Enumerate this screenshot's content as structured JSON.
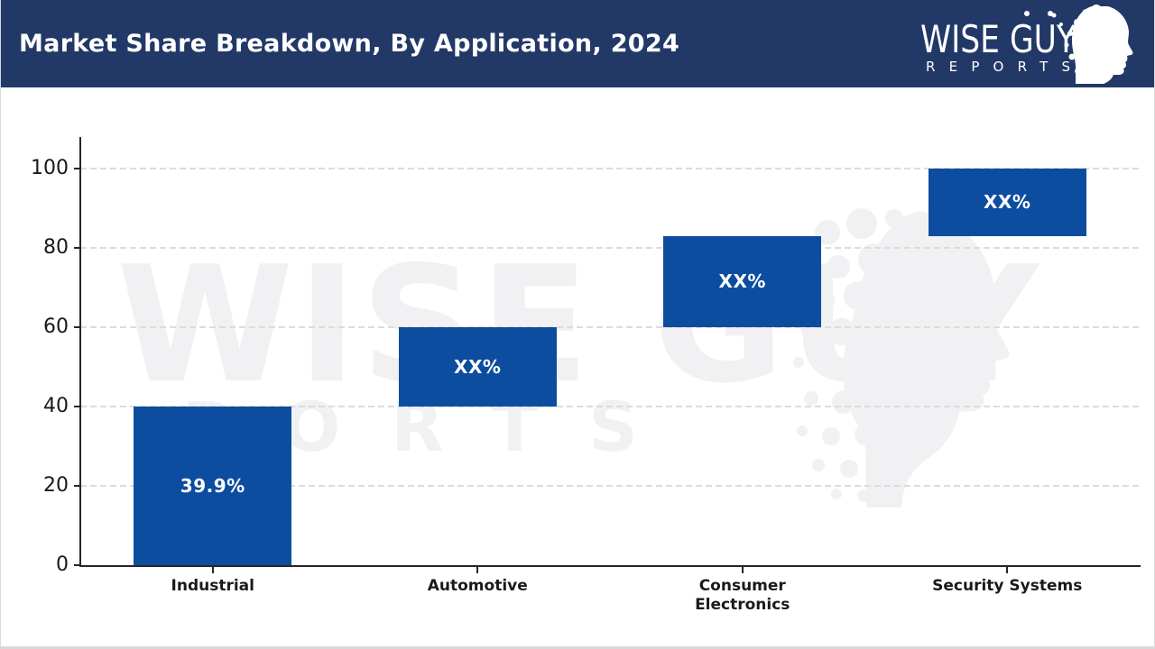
{
  "header": {
    "title": "Market Share Breakdown, By Application, 2024",
    "brand": {
      "line1": "WISE GUY",
      "line2": "REPORTS"
    }
  },
  "watermark": {
    "line1": "WISE GUY",
    "line2": "PORTS"
  },
  "colors": {
    "header_bg": "#223967",
    "bar": "#0d4da0",
    "grid": "#dcdcdc",
    "axis": "#262626",
    "tick_text": "#1a1a1a",
    "bar_label_text": "#ffffff",
    "watermark": "#f1f1f4"
  },
  "chart_data": {
    "type": "bar",
    "subtype": "waterfall",
    "title": "Market Share Breakdown, By Application, 2024",
    "categories": [
      "Industrial",
      "Automotive",
      "Consumer Electronics",
      "Security Systems"
    ],
    "segments": [
      {
        "category": "Industrial",
        "start": 0,
        "end": 39.9,
        "label": "39.9%"
      },
      {
        "category": "Automotive",
        "start": 39.9,
        "end": 60,
        "label": "XX%"
      },
      {
        "category": "Consumer Electronics",
        "start": 60,
        "end": 83,
        "label": "XX%"
      },
      {
        "category": "Security Systems",
        "start": 83,
        "end": 100,
        "label": "XX%"
      }
    ],
    "ylim": [
      0,
      100
    ],
    "yticks": [
      0,
      20,
      40,
      60,
      80,
      100
    ],
    "xlabel": "",
    "ylabel": "",
    "grid": "horizontal-dashed",
    "legend": null
  }
}
